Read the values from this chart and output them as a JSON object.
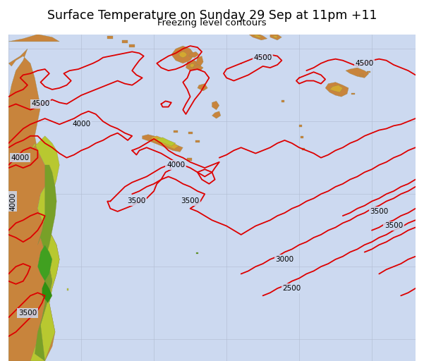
{
  "title": "Surface Temperature on Sunday 29 Sep at 11pm +11",
  "subtitle": "Freezing level contours",
  "title_fontsize": 12.5,
  "subtitle_fontsize": 9.5,
  "background_color": "#ffffff",
  "ocean_color": "#ccd9f0",
  "lon_min": 155.0,
  "lon_max": 183.0,
  "lat_min": -36.5,
  "lat_max": -14.0,
  "contour_color": "#dd0000",
  "contour_linewidth": 1.3,
  "contour_label_fontsize": 7.5,
  "grid_color": "#b0bcd0",
  "grid_lw": 0.4
}
